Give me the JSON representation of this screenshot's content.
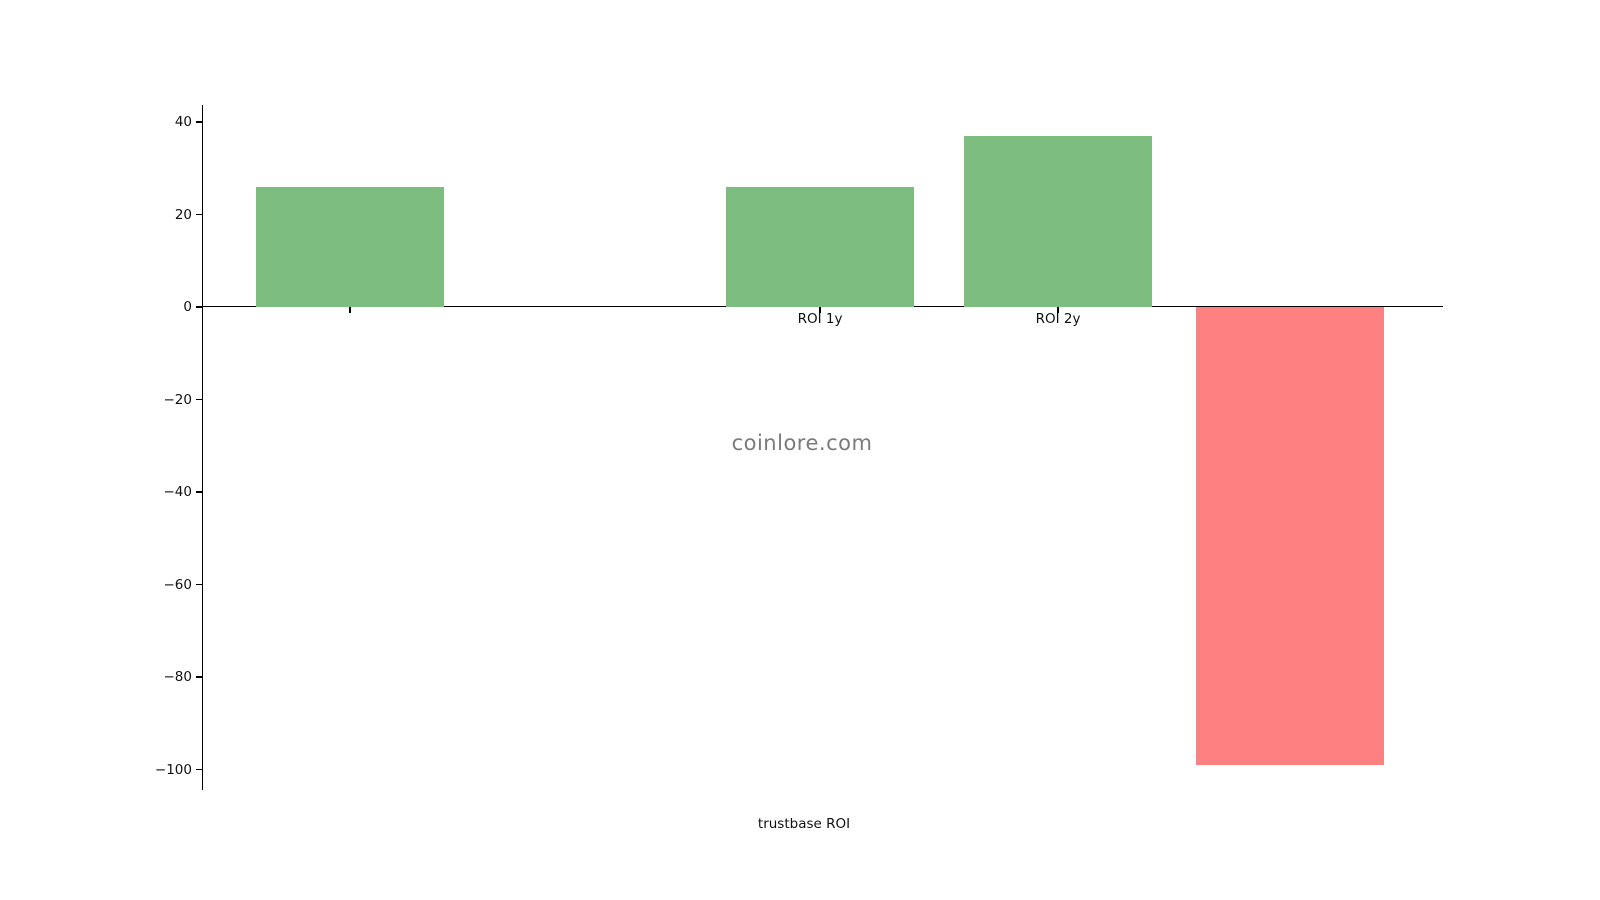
{
  "watermark": "coinlore.com",
  "chart_data": {
    "type": "bar",
    "categories": [
      "",
      "ROI 1y",
      "ROI 2y",
      ""
    ],
    "values": [
      26,
      26,
      37,
      -99
    ],
    "title": "",
    "xlabel": "trustbase ROI",
    "ylabel": "",
    "ylim": [
      -107,
      44
    ],
    "yticks": [
      40,
      20,
      0,
      -20,
      -40,
      -60,
      -80,
      -100
    ],
    "grid": false,
    "legend": false,
    "colors": {
      "positive_bar": "#7dbe80",
      "negative_bar": "#fd8181",
      "axis": "#000000",
      "tick_text": "#111111",
      "watermark_text": "#7b7b7b"
    },
    "notes": "visible x tick marks only under first three bars; labels shown only for ROI 1y and ROI 2y"
  }
}
